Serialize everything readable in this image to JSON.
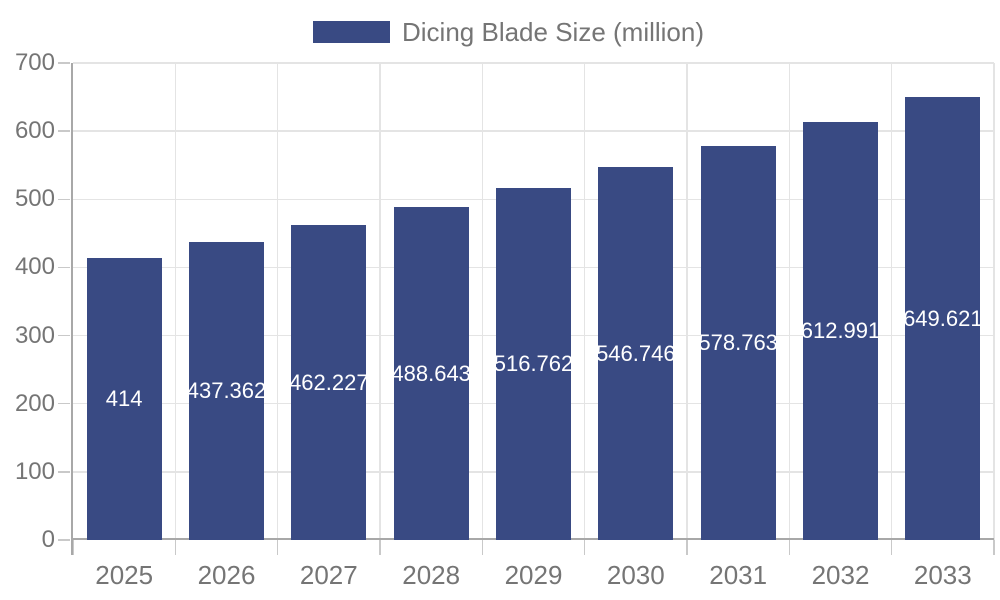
{
  "legend": {
    "label": "Dicing Blade Size (million)"
  },
  "chart_data": {
    "type": "bar",
    "title": "",
    "xlabel": "",
    "ylabel": "",
    "legend_position": "top",
    "legend_entries": [
      "Dicing Blade Size (million)"
    ],
    "categories": [
      "2025",
      "2026",
      "2027",
      "2028",
      "2029",
      "2030",
      "2031",
      "2032",
      "2033"
    ],
    "series": [
      {
        "name": "Dicing Blade Size (million)",
        "values": [
          414,
          437.362,
          462.227,
          488.643,
          516.762,
          546.746,
          578.763,
          612.991,
          649.621
        ]
      }
    ],
    "value_labels": [
      "414",
      "437.362",
      "462.227",
      "488.643",
      "516.762",
      "546.746",
      "578.763",
      "612.991",
      "649.621"
    ],
    "ylim": [
      0,
      700
    ],
    "y_ticks": [
      0,
      100,
      200,
      300,
      400,
      500,
      600,
      700
    ],
    "grid": true,
    "colors": {
      "bar": "#394A83",
      "grid_line": "#E4E4E4",
      "tick_line": "#C9C9C9",
      "axis_line": "#A8A8A8",
      "axis_text": "#757575",
      "value_label_text": "#FFFFFF",
      "background": "#FFFFFF"
    }
  }
}
